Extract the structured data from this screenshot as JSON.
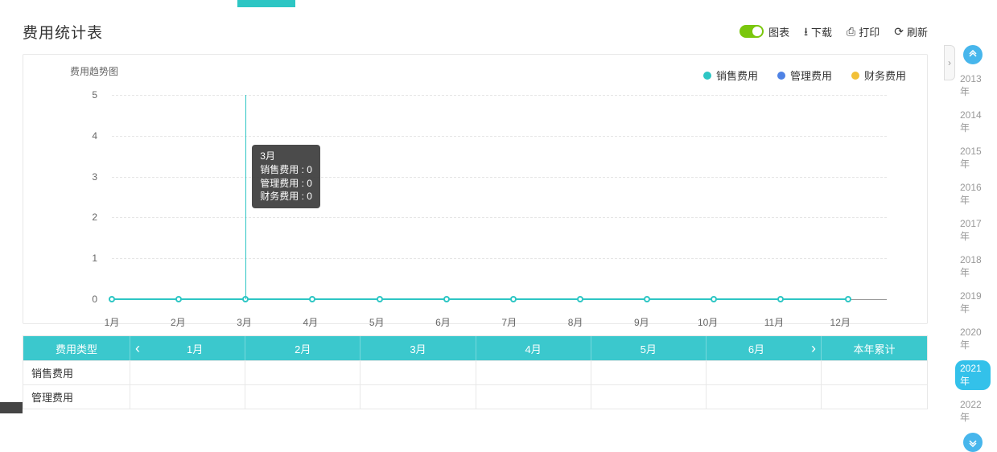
{
  "page_title": "费用统计表",
  "toolbar": {
    "chart_toggle_label": "图表",
    "download_label": "下载",
    "print_label": "打印",
    "refresh_label": "刷新"
  },
  "chart": {
    "title": "费用趋势图",
    "type": "line",
    "ylim": [
      0,
      5
    ],
    "ytick_step": 1,
    "x_labels": [
      "1月",
      "2月",
      "3月",
      "4月",
      "5月",
      "6月",
      "7月",
      "8月",
      "9月",
      "10月",
      "11月",
      "12月"
    ],
    "grid_color": "#e6e6e6",
    "axis_color": "#999999",
    "background_color": "#ffffff",
    "series": [
      {
        "name": "销售费用",
        "color": "#2dc6c4",
        "values": [
          0,
          0,
          0,
          0,
          0,
          0,
          0,
          0,
          0,
          0,
          0,
          0
        ]
      },
      {
        "name": "管理费用",
        "color": "#4e82e5",
        "values": [
          0,
          0,
          0,
          0,
          0,
          0,
          0,
          0,
          0,
          0,
          0,
          0
        ]
      },
      {
        "name": "财务费用",
        "color": "#f2c037",
        "values": [
          0,
          0,
          0,
          0,
          0,
          0,
          0,
          0,
          0,
          0,
          0,
          0
        ]
      }
    ],
    "hover_index": 2,
    "tooltip": {
      "title": "3月",
      "rows": [
        {
          "label": "销售费用",
          "value": "0"
        },
        {
          "label": "管理费用",
          "value": "0"
        },
        {
          "label": "财务费用",
          "value": "0"
        }
      ]
    }
  },
  "table": {
    "first_header": "费用类型",
    "last_header": "本年累计",
    "columns": [
      "1月",
      "2月",
      "3月",
      "4月",
      "5月",
      "6月"
    ],
    "rows": [
      {
        "type": "销售费用",
        "cells": [
          "",
          "",
          "",
          "",
          "",
          ""
        ],
        "total": ""
      },
      {
        "type": "管理费用",
        "cells": [
          "",
          "",
          "",
          "",
          "",
          ""
        ],
        "total": ""
      }
    ],
    "header_bg": "#3bc8cd"
  },
  "years": {
    "list": [
      "2013年",
      "2014年",
      "2015年",
      "2016年",
      "2017年",
      "2018年",
      "2019年",
      "2020年",
      "2021年",
      "2022年"
    ],
    "selected_index": 8
  }
}
